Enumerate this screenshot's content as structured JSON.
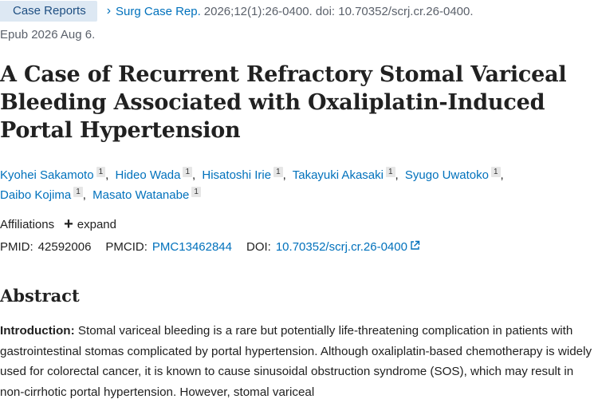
{
  "header": {
    "article_type": "Case Reports",
    "journal": "Surg Case Rep.",
    "citation": "2026;12(1):26-0400. doi: 10.70352/scrj.cr.26-0400.",
    "epub": "Epub 2026 Aug 6."
  },
  "title": "A Case of Recurrent Refractory Stomal Variceal Bleeding Associated with Oxaliplatin-Induced Portal Hypertension",
  "authors": [
    {
      "name": "Kyohei Sakamoto",
      "aff": "1"
    },
    {
      "name": "Hideo Wada",
      "aff": "1"
    },
    {
      "name": "Hisatoshi Irie",
      "aff": "1"
    },
    {
      "name": "Takayuki Akasaki",
      "aff": "1"
    },
    {
      "name": "Syugo Uwatoko",
      "aff": "1"
    },
    {
      "name": "Daibo Kojima",
      "aff": "1"
    },
    {
      "name": "Masato Watanabe",
      "aff": "1"
    }
  ],
  "affiliations": {
    "label": "Affiliations",
    "expand_label": "expand"
  },
  "identifiers": {
    "pmid_label": "PMID:",
    "pmid": "42592006",
    "pmcid_label": "PMCID:",
    "pmcid": "PMC13462844",
    "doi_label": "DOI:",
    "doi": "10.70352/scrj.cr.26-0400"
  },
  "abstract": {
    "heading": "Abstract",
    "intro_label": "Introduction:",
    "intro_text": " Stomal variceal bleeding is a rare but potentially life-threatening complication in patients with gastrointestinal stomas complicated by portal hypertension. Although oxaliplatin-based chemotherapy is widely used for colorectal cancer, it is known to cause sinusoidal obstruction syndrome (SOS), which may result in non-cirrhotic portal hypertension. However, stomal variceal"
  },
  "colors": {
    "link": "#0071bc",
    "badge_bg": "#dde8f3",
    "text": "#212121",
    "muted": "#5b616b"
  }
}
